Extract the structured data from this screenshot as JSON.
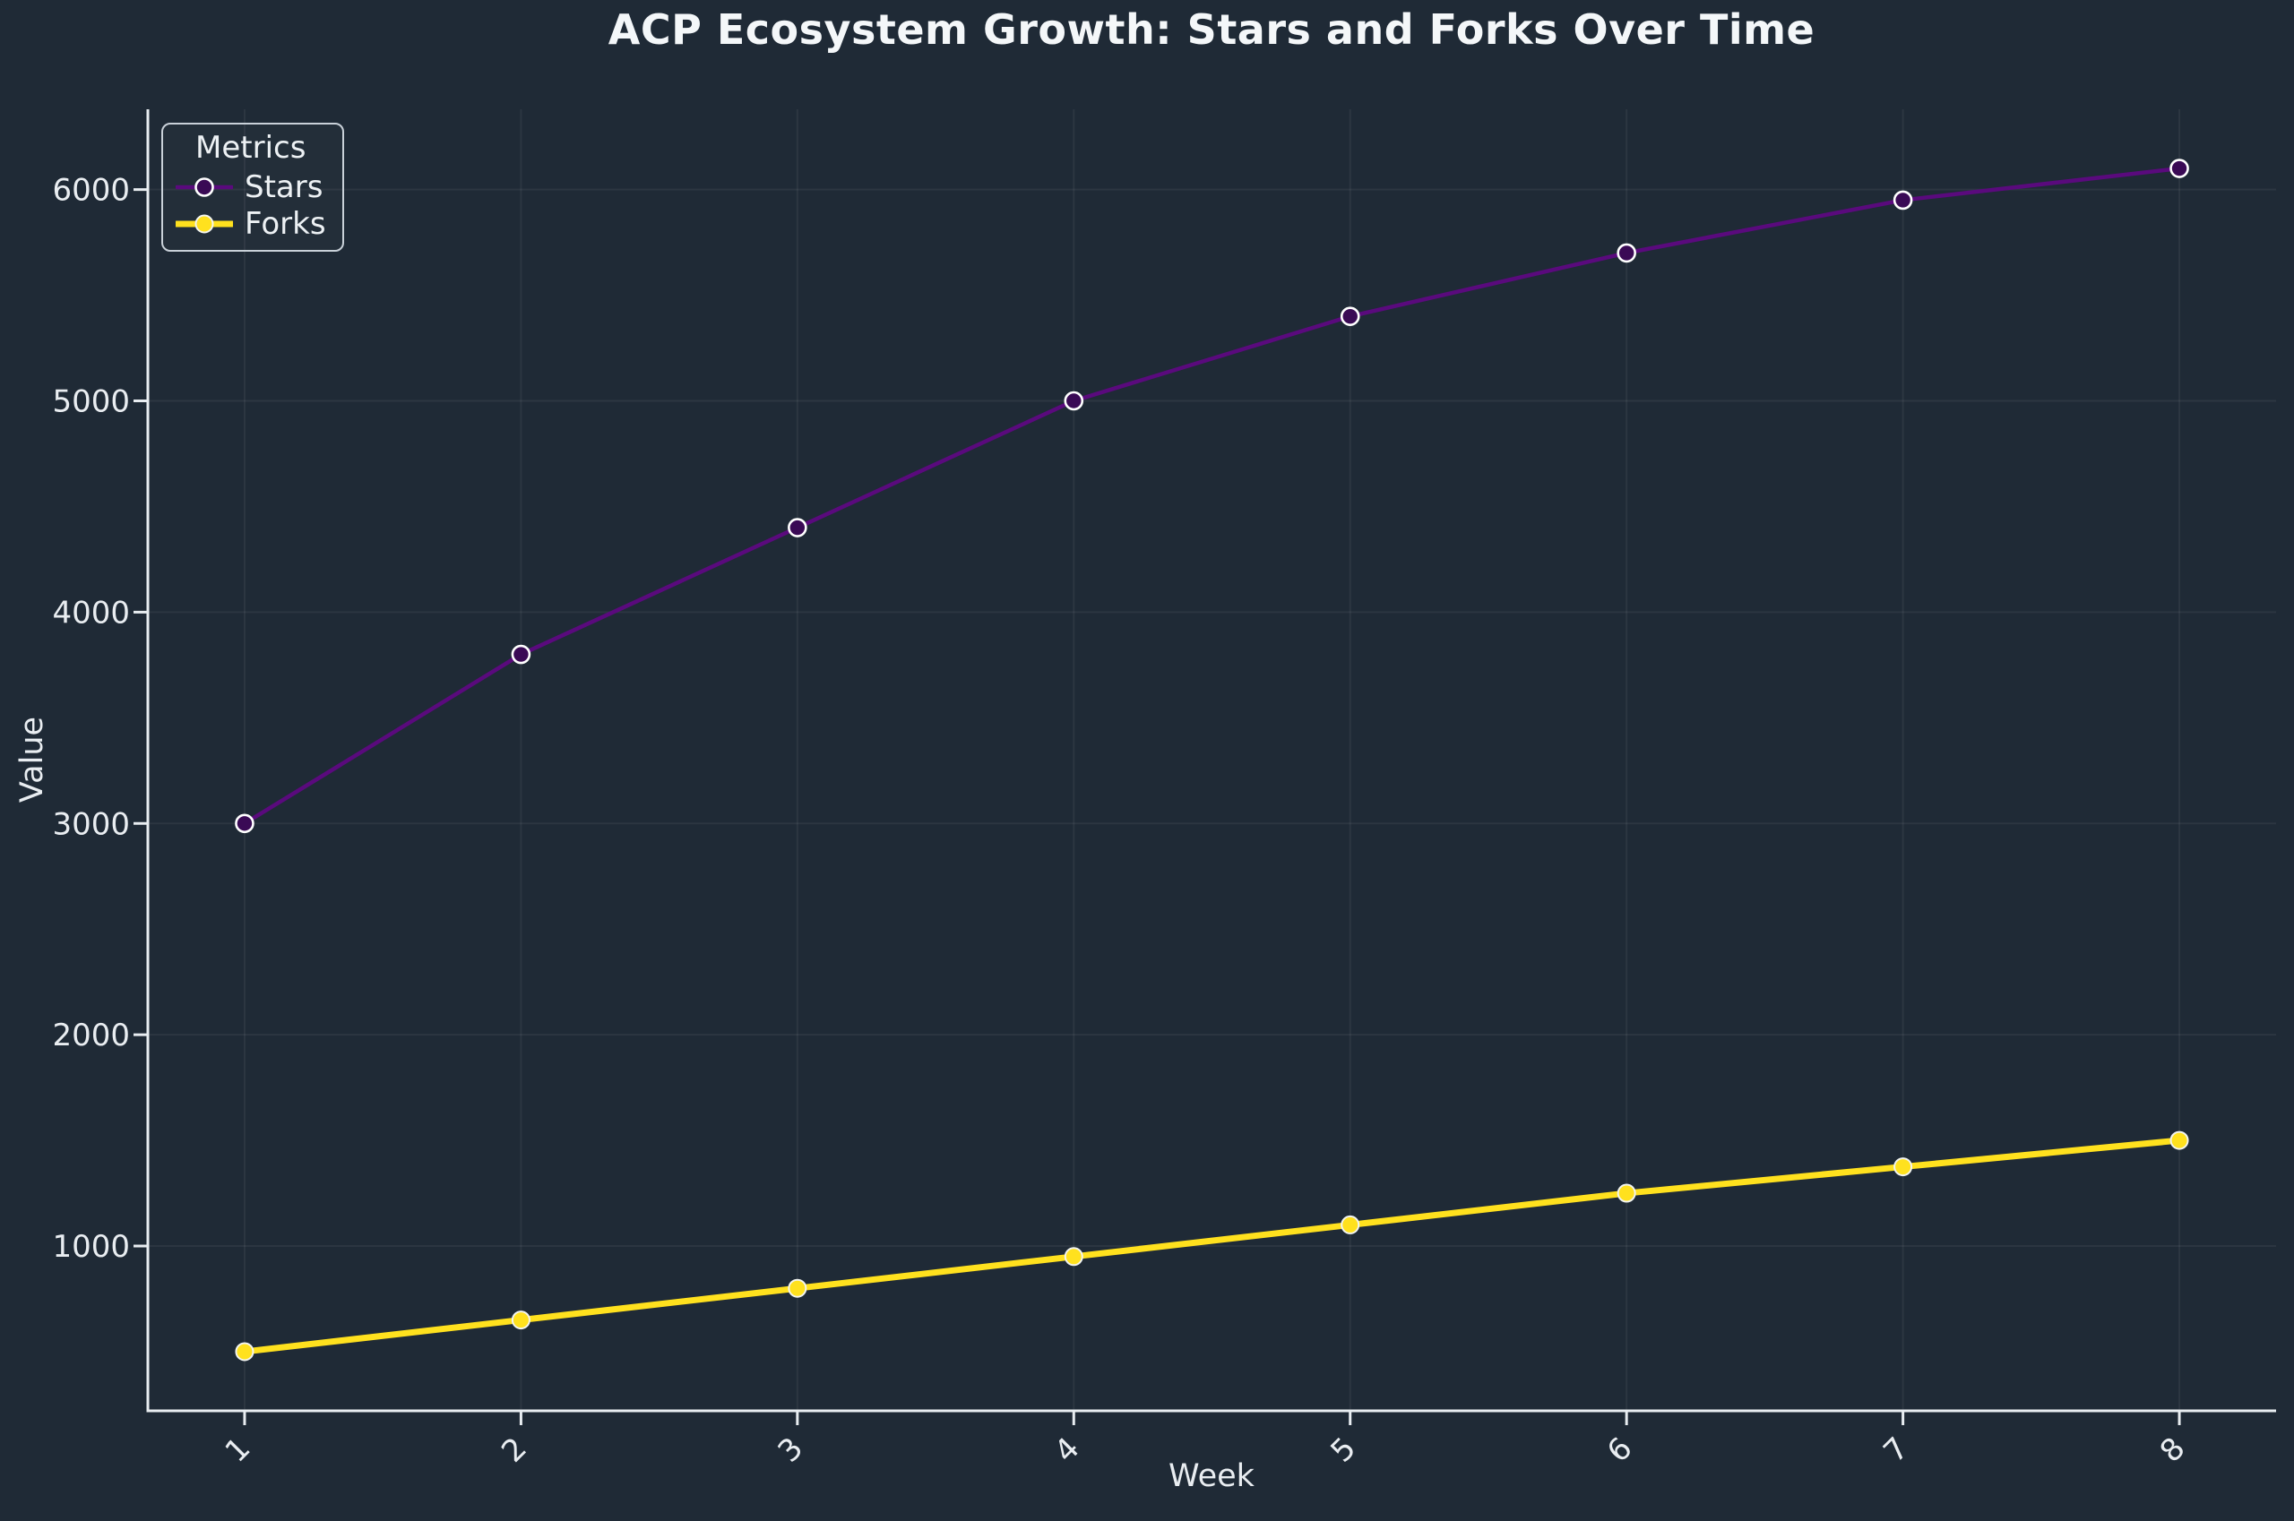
{
  "page": {
    "background": "#1F2A36"
  },
  "chart_data": {
    "type": "line",
    "title": "ACP Ecosystem Growth: Stars and Forks Over Time",
    "xlabel": "Week",
    "ylabel": "Value",
    "legend": {
      "title": "Metrics",
      "position": "upper left"
    },
    "categories": [
      1,
      2,
      3,
      4,
      5,
      6,
      7,
      8
    ],
    "series": [
      {
        "name": "Stars",
        "color": "#5A0A7D",
        "marker": "circle-open",
        "marker_fill": "#3A0A55",
        "marker_edge": "#FFFFFF",
        "line_width": 4.5,
        "marker_radius": 9.5,
        "marker_edge_width": 2.6,
        "values": [
          3000,
          3800,
          4400,
          5000,
          5400,
          5700,
          5950,
          6100
        ]
      },
      {
        "name": "Forks",
        "color": "#FFE11E",
        "marker": "circle-filled",
        "marker_fill": "#FFE11E",
        "marker_edge": "#F2F4F0",
        "line_width": 7,
        "marker_radius": 9.5,
        "marker_edge_width": 2,
        "values": [
          500,
          650,
          800,
          950,
          1100,
          1250,
          1375,
          1500
        ]
      }
    ],
    "x_ticks": [
      "1",
      "2",
      "3",
      "4",
      "5",
      "6",
      "7",
      "8"
    ],
    "y_ticks": [
      1000,
      2000,
      3000,
      4000,
      5000,
      6000
    ],
    "xlim": [
      0.65,
      8.35
    ],
    "ylim": [
      220,
      6380
    ],
    "grid": true,
    "grid_color": "rgba(255,255,255,0.06)",
    "axis_color": "#E8EDF1",
    "tick_label_color": "#E9EDF1",
    "tick_font_size": 34
  }
}
